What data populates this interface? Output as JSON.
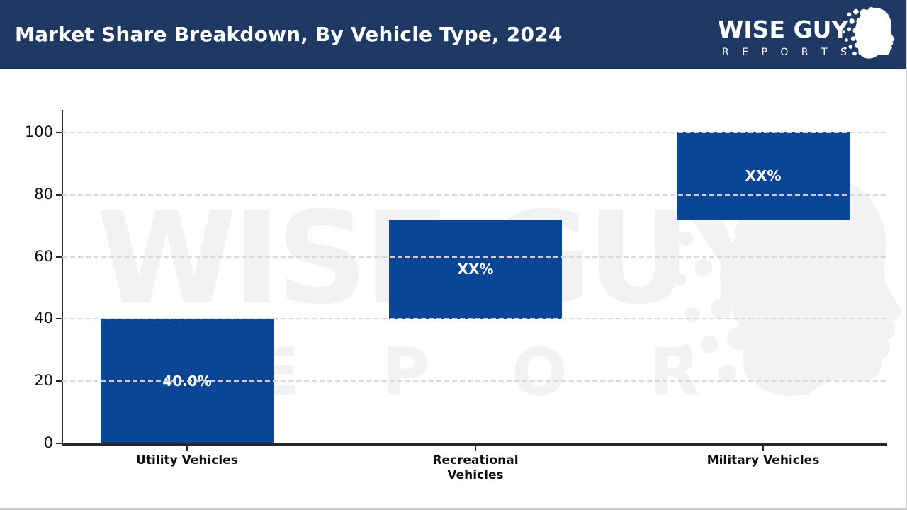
{
  "header": {
    "title": "Market Share Breakdown, By Vehicle Type, 2024",
    "bg_color": "#1f3864",
    "logo": {
      "line1": "WISE GUY",
      "line2": "R E P O R T S"
    }
  },
  "watermark": {
    "text1": "WISE GUY",
    "text2": "R E P O R T S"
  },
  "chart_data": {
    "type": "bar",
    "variant": "floating-segment (waterfall style)",
    "title": "Market Share Breakdown, By Vehicle Type, 2024",
    "categories": [
      "Utility Vehicles",
      "Recreational\nVehicles",
      "Military Vehicles"
    ],
    "series": [
      {
        "name": "Market Share (%)",
        "segments": [
          {
            "category": "Utility Vehicles",
            "start": 0,
            "end": 40,
            "label": "40.0%"
          },
          {
            "category": "Recreational Vehicles",
            "start": 40,
            "end": 72,
            "label": "XX%"
          },
          {
            "category": "Military Vehicles",
            "start": 72,
            "end": 100,
            "label": "XX%"
          }
        ]
      }
    ],
    "xlabel": "",
    "ylabel": "",
    "ylim": [
      0,
      107
    ],
    "yticks": [
      0,
      20,
      40,
      60,
      80,
      100
    ],
    "grid": "horizontal dashed, drawn over bars",
    "legend": "none",
    "bar_color": "#0b4596",
    "bar_label_color": "#ffffff",
    "axis_color": "#262626",
    "grid_color": "#d6d6d6"
  }
}
